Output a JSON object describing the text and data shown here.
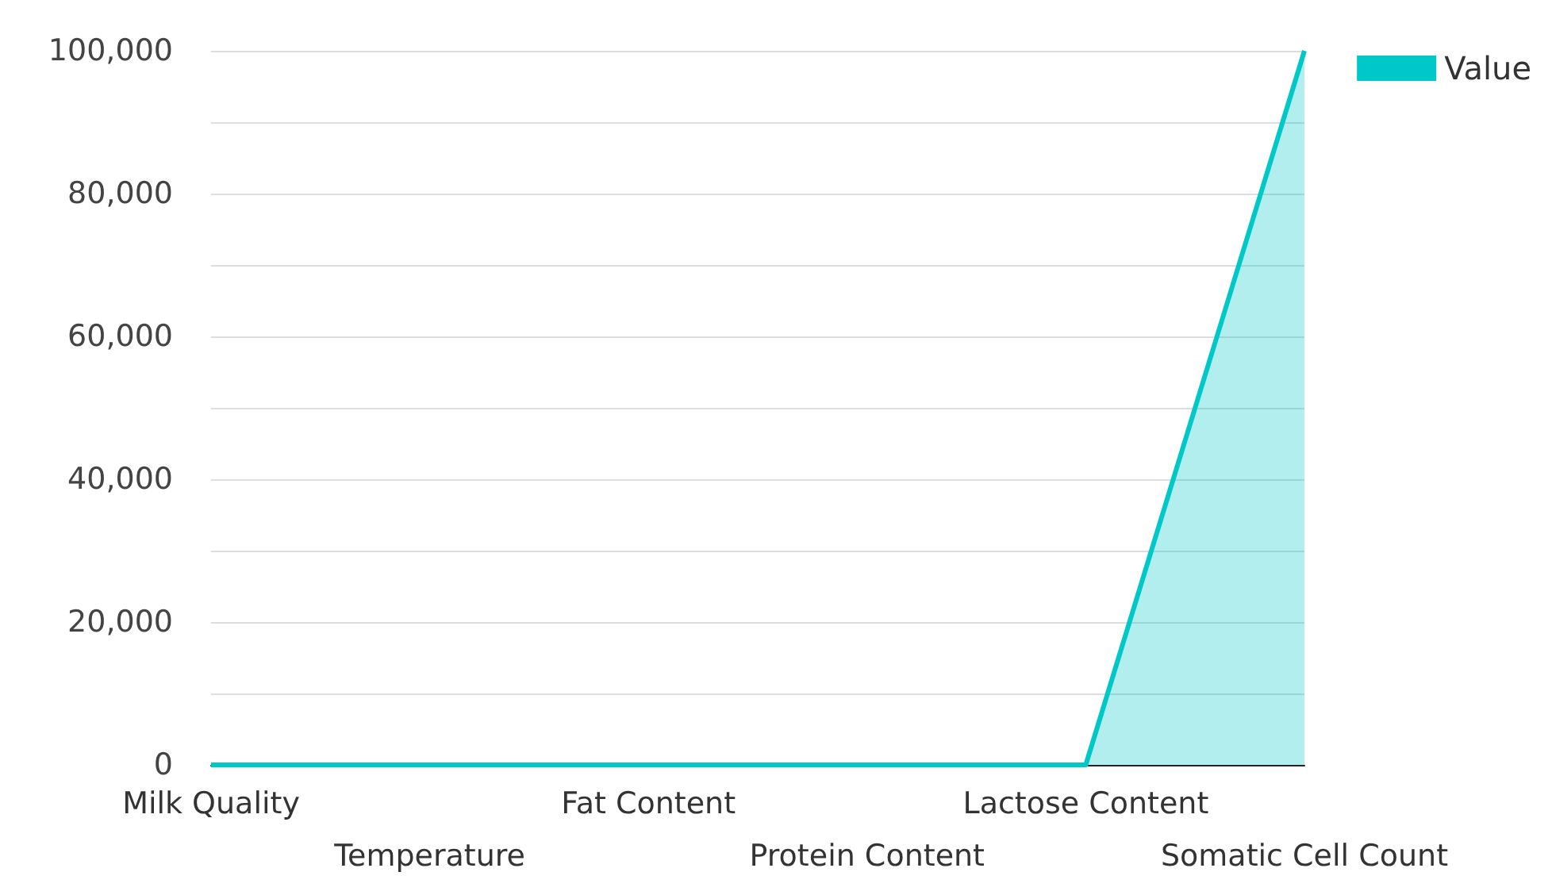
{
  "chart_data": {
    "type": "area",
    "categories": [
      "Milk Quality",
      "Temperature",
      "Fat Content",
      "Protein Content",
      "Lactose Content",
      "Somatic Cell Count"
    ],
    "series": [
      {
        "name": "Value",
        "color": "#00c8c8",
        "values": [
          0,
          0,
          0,
          0,
          0,
          100000
        ]
      }
    ],
    "ylim": [
      0,
      100000
    ],
    "yticks": [
      0,
      {
        "value": 10000,
        "label": null
      },
      {
        "value": 20000,
        "label": "20,000"
      },
      {
        "value": 30000,
        "label": null
      },
      {
        "value": 40000,
        "label": "40,000"
      },
      {
        "value": 50000,
        "label": null
      },
      {
        "value": 60000,
        "label": "60,000"
      },
      {
        "value": 70000,
        "label": null
      },
      {
        "value": 80000,
        "label": "80,000"
      },
      {
        "value": 90000,
        "label": null
      },
      {
        "value": 100000,
        "label": "100,000"
      }
    ],
    "grid": "y",
    "legend": "top right",
    "marker": "none"
  }
}
